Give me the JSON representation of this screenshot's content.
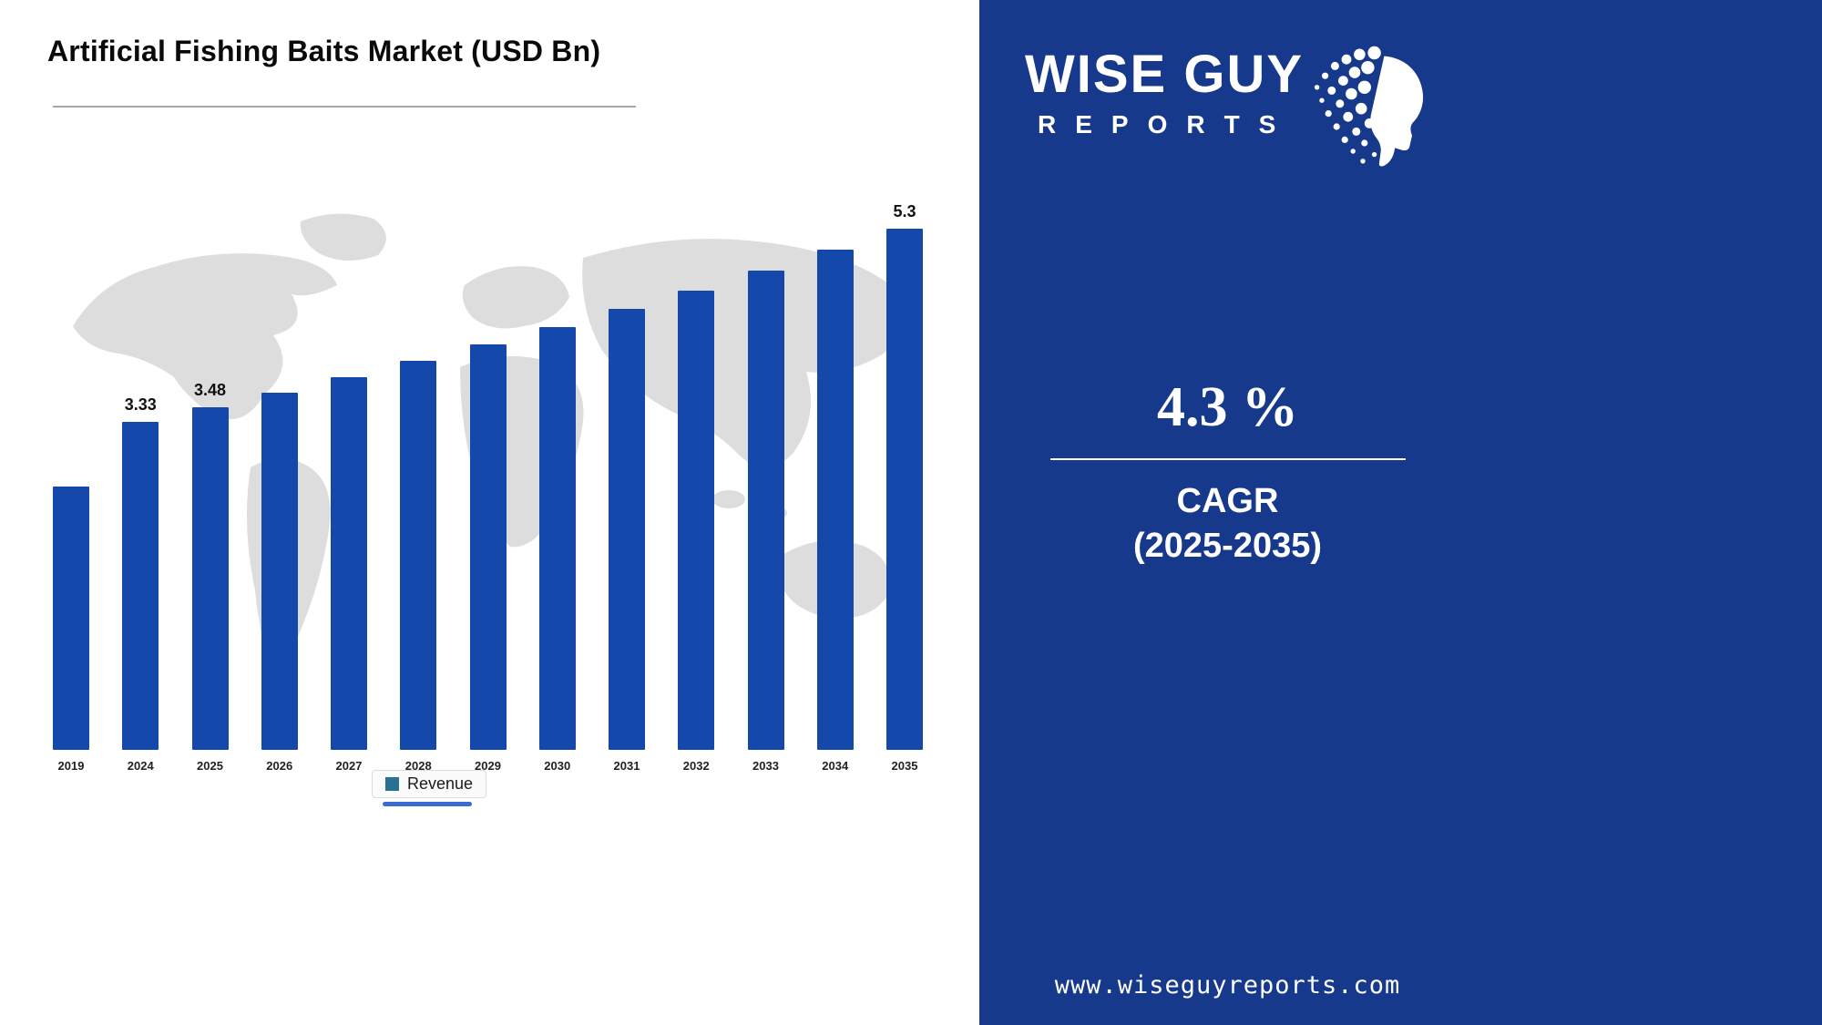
{
  "header": {
    "title": "Artificial Fishing Baits Market (USD Bn)"
  },
  "chart_data": {
    "type": "bar",
    "title": "Artificial Fishing Baits Market (USD Bn)",
    "categories": [
      "2019",
      "2024",
      "2025",
      "2026",
      "2027",
      "2028",
      "2029",
      "2030",
      "2031",
      "2032",
      "2033",
      "2034",
      "2035"
    ],
    "values": [
      2.68,
      3.33,
      3.48,
      3.63,
      3.79,
      3.95,
      4.12,
      4.3,
      4.48,
      4.67,
      4.87,
      5.08,
      5.3
    ],
    "data_labels": {
      "2024": "3.33",
      "2025": "3.48",
      "2035": "5.3"
    },
    "series_name": "Revenue",
    "xlabel": "",
    "ylabel": "",
    "ylim": [
      0,
      5.6
    ],
    "grid": false,
    "legend_position": "bottom",
    "bar_color": "#1448AB"
  },
  "legend": {
    "label": "Revenue",
    "swatch_color": "#2A7090"
  },
  "panel": {
    "logo_line1": "WISE GUY",
    "logo_line2": "REPORTS",
    "cagr_value": "4.3 %",
    "cagr_line1": "CAGR",
    "cagr_line2": "(2025-2035)",
    "website": "www.wiseguyreports.com",
    "background_color": "#17398C"
  },
  "icons": {
    "logo_head": "dotted-head-profile"
  }
}
